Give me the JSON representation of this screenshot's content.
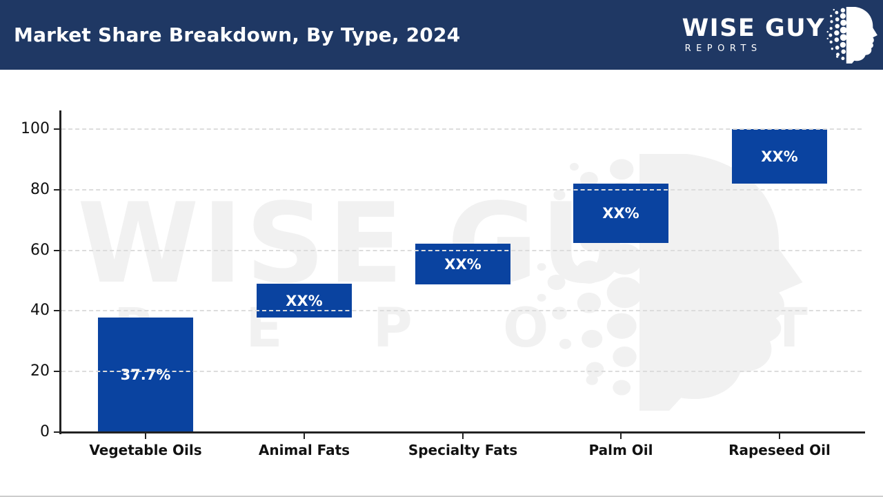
{
  "header": {
    "title": "Market Share Breakdown, By Type, 2024",
    "background_color": "#1f3864",
    "logo": {
      "name": "WISE GUY",
      "tagline": "REPORTS"
    }
  },
  "watermark": {
    "big_text": "WISE GUY",
    "small_text": "R E P O R T S"
  },
  "chart_data": {
    "type": "bar",
    "subtype": "waterfall",
    "title": "Market Share Breakdown, By Type, 2024",
    "xlabel": "",
    "ylabel": "",
    "categories": [
      "Vegetable Oils",
      "Animal Fats",
      "Specialty Fats",
      "Palm Oil",
      "Rapeseed Oil"
    ],
    "segments": [
      {
        "category": "Vegetable Oils",
        "start": 0,
        "end": 37.7,
        "label": "37.7%"
      },
      {
        "category": "Animal Fats",
        "start": 37.7,
        "end": 48.9,
        "label": "XX%"
      },
      {
        "category": "Specialty Fats",
        "start": 48.9,
        "end": 62.3,
        "label": "XX%"
      },
      {
        "category": "Palm Oil",
        "start": 62.3,
        "end": 81.9,
        "label": "XX%"
      },
      {
        "category": "Rapeseed Oil",
        "start": 81.9,
        "end": 100,
        "label": "XX%"
      }
    ],
    "yticks": [
      0,
      20,
      40,
      60,
      80,
      100
    ],
    "ylim": [
      0,
      106
    ],
    "grid": "horizontal-dashed",
    "legend": "none",
    "bar_color": "#0a43a0",
    "bar_label_color": "#ffffff",
    "axis_color": "#222222",
    "gridline_color": "#dcdcdc"
  }
}
